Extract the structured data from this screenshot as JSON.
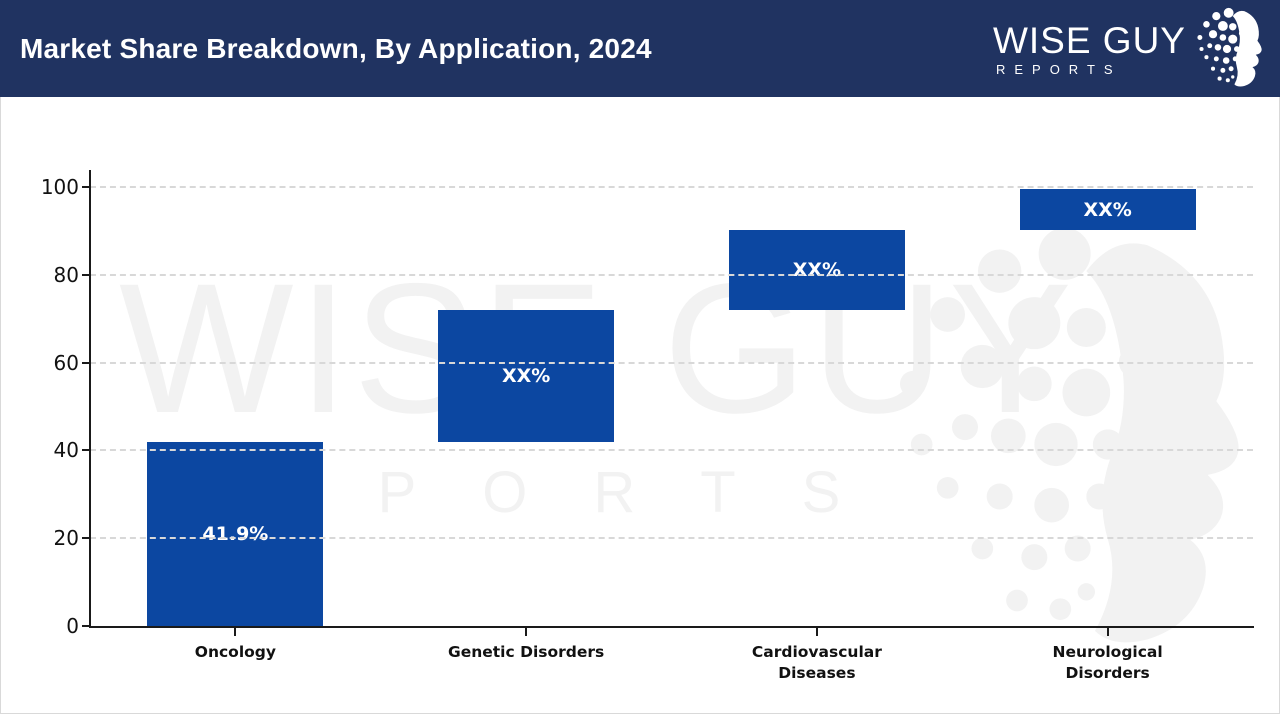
{
  "header": {
    "title": "Market Share Breakdown, By Application, 2024",
    "background_color": "#203361",
    "logo": {
      "line1": "WISE GUY",
      "line2": "REPORTS"
    }
  },
  "watermark": {
    "line1": "WISE GUY",
    "line2": "REPORTS"
  },
  "chart_data": {
    "type": "bar",
    "subtype": "waterfall",
    "title": "Market Share Breakdown, By Application, 2024",
    "categories": [
      "Oncology",
      "Genetic Disorders",
      "Cardiovascular Diseases",
      "Neurological Disorders"
    ],
    "category_lines": [
      [
        "Oncology"
      ],
      [
        "Genetic Disorders"
      ],
      [
        "Cardiovascular",
        "Diseases"
      ],
      [
        "Neurological",
        "Disorders"
      ]
    ],
    "series": [
      {
        "name": "Market Share",
        "segments": [
          {
            "category": "Oncology",
            "start": 0,
            "end": 41.9,
            "label": "41.9%"
          },
          {
            "category": "Genetic Disorders",
            "start": 41.9,
            "end": 71.9,
            "label": "XX%"
          },
          {
            "category": "Cardiovascular Diseases",
            "start": 71.9,
            "end": 90.1,
            "label": "XX%"
          },
          {
            "category": "Neurological Disorders",
            "start": 90.1,
            "end": 99.5,
            "label": "XX%"
          }
        ]
      }
    ],
    "yticks": [
      0,
      20,
      40,
      60,
      80,
      100
    ],
    "ylim": [
      0,
      100
    ],
    "xlabel": "",
    "ylabel": "",
    "grid": "dashed-horizontal",
    "legend": "none",
    "bar_color": "#0c47a1",
    "bar_label_color": "#ffffff",
    "gridline_color": "#d8d8d8",
    "axis_color": "#1a1a1a"
  }
}
